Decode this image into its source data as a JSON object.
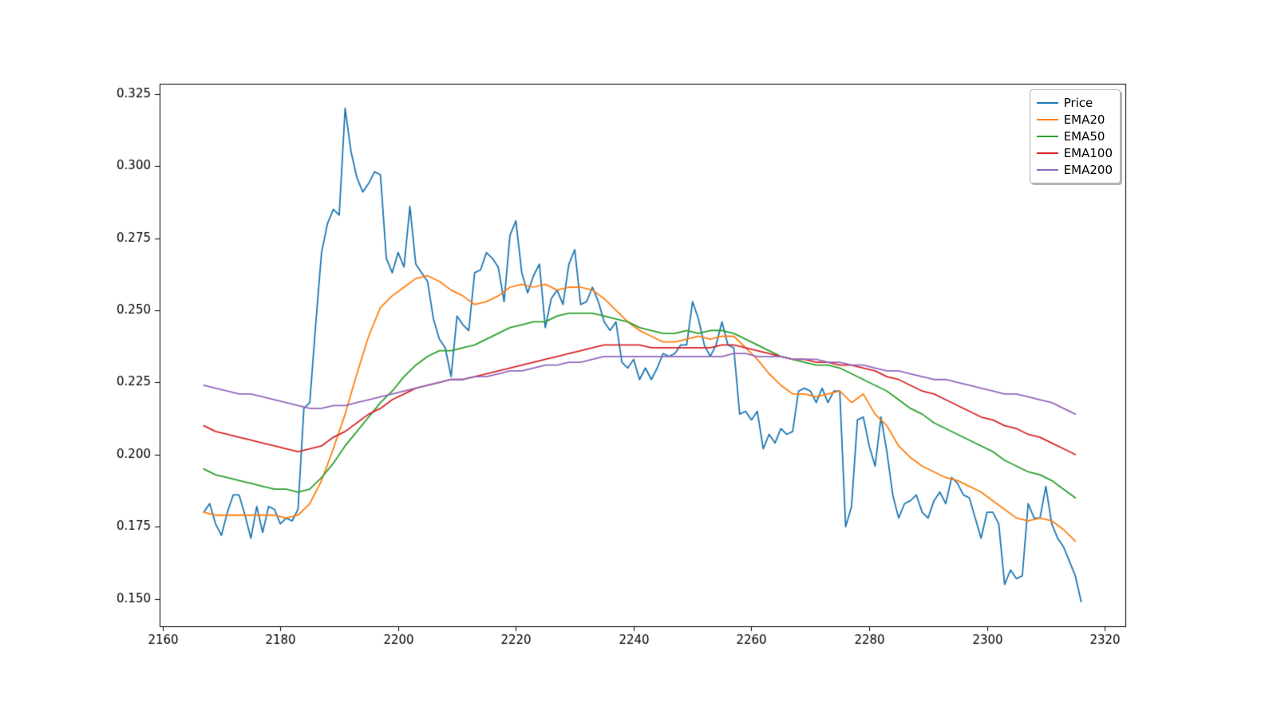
{
  "chart_data": {
    "type": "line",
    "title": "",
    "xlabel": "",
    "ylabel": "",
    "grid": false,
    "legend_position": "upper right",
    "xlim": [
      2159.5,
      2323.5
    ],
    "ylim": [
      0.1405,
      0.3285
    ],
    "x_ticks": [
      2160,
      2180,
      2200,
      2220,
      2240,
      2260,
      2280,
      2300,
      2320
    ],
    "x_tick_labels": [
      "2160",
      "2180",
      "2200",
      "2220",
      "2240",
      "2260",
      "2280",
      "2300",
      "2320"
    ],
    "y_ticks": [
      0.15,
      0.175,
      0.2,
      0.225,
      0.25,
      0.275,
      0.3,
      0.325
    ],
    "y_tick_labels": [
      "0.150",
      "0.175",
      "0.200",
      "0.225",
      "0.250",
      "0.275",
      "0.300",
      "0.325"
    ],
    "series": [
      {
        "name": "Price",
        "color": "#1f77b4",
        "x_start": 2167,
        "x_step": 1,
        "values": [
          0.18,
          0.183,
          0.176,
          0.172,
          0.18,
          0.186,
          0.186,
          0.179,
          0.171,
          0.182,
          0.173,
          0.182,
          0.181,
          0.176,
          0.178,
          0.177,
          0.181,
          0.216,
          0.218,
          0.245,
          0.27,
          0.28,
          0.285,
          0.283,
          0.32,
          0.305,
          0.296,
          0.291,
          0.294,
          0.298,
          0.297,
          0.268,
          0.263,
          0.27,
          0.265,
          0.286,
          0.266,
          0.263,
          0.26,
          0.247,
          0.24,
          0.237,
          0.227,
          0.248,
          0.245,
          0.243,
          0.263,
          0.264,
          0.27,
          0.268,
          0.265,
          0.253,
          0.276,
          0.281,
          0.263,
          0.256,
          0.262,
          0.266,
          0.244,
          0.254,
          0.257,
          0.252,
          0.266,
          0.271,
          0.252,
          0.253,
          0.258,
          0.253,
          0.246,
          0.243,
          0.246,
          0.232,
          0.23,
          0.233,
          0.226,
          0.23,
          0.226,
          0.23,
          0.235,
          0.234,
          0.235,
          0.238,
          0.238,
          0.253,
          0.247,
          0.238,
          0.234,
          0.238,
          0.246,
          0.238,
          0.237,
          0.214,
          0.215,
          0.212,
          0.215,
          0.202,
          0.207,
          0.204,
          0.209,
          0.207,
          0.208,
          0.222,
          0.223,
          0.222,
          0.218,
          0.223,
          0.218,
          0.222,
          0.222,
          0.175,
          0.182,
          0.212,
          0.213,
          0.203,
          0.196,
          0.213,
          0.201,
          0.186,
          0.178,
          0.183,
          0.184,
          0.186,
          0.18,
          0.178,
          0.184,
          0.187,
          0.183,
          0.192,
          0.19,
          0.186,
          0.185,
          0.178,
          0.171,
          0.18,
          0.18,
          0.176,
          0.155,
          0.16,
          0.157,
          0.158,
          0.183,
          0.178,
          0.178,
          0.189,
          0.176,
          0.171,
          0.168,
          0.163,
          0.158,
          0.149
        ]
      },
      {
        "name": "EMA20",
        "color": "#ff7f0e",
        "x_start": 2167,
        "x_step": 2,
        "values": [
          0.18,
          0.179,
          0.179,
          0.179,
          0.179,
          0.179,
          0.179,
          0.178,
          0.179,
          0.183,
          0.191,
          0.202,
          0.214,
          0.228,
          0.241,
          0.251,
          0.255,
          0.258,
          0.261,
          0.262,
          0.26,
          0.257,
          0.255,
          0.252,
          0.253,
          0.255,
          0.258,
          0.259,
          0.258,
          0.259,
          0.257,
          0.258,
          0.258,
          0.257,
          0.254,
          0.25,
          0.246,
          0.243,
          0.241,
          0.239,
          0.239,
          0.24,
          0.241,
          0.24,
          0.241,
          0.241,
          0.237,
          0.233,
          0.228,
          0.224,
          0.221,
          0.221,
          0.22,
          0.221,
          0.222,
          0.218,
          0.221,
          0.214,
          0.21,
          0.203,
          0.199,
          0.196,
          0.194,
          0.192,
          0.191,
          0.189,
          0.187,
          0.184,
          0.181,
          0.178,
          0.177,
          0.178,
          0.177,
          0.174,
          0.17
        ]
      },
      {
        "name": "EMA50",
        "color": "#2ca02c",
        "x_start": 2167,
        "x_step": 2,
        "values": [
          0.195,
          0.193,
          0.192,
          0.191,
          0.19,
          0.189,
          0.188,
          0.188,
          0.187,
          0.188,
          0.192,
          0.197,
          0.203,
          0.208,
          0.213,
          0.218,
          0.222,
          0.227,
          0.231,
          0.234,
          0.236,
          0.236,
          0.237,
          0.238,
          0.24,
          0.242,
          0.244,
          0.245,
          0.246,
          0.246,
          0.248,
          0.249,
          0.249,
          0.249,
          0.248,
          0.247,
          0.246,
          0.244,
          0.243,
          0.242,
          0.242,
          0.243,
          0.242,
          0.243,
          0.243,
          0.242,
          0.24,
          0.238,
          0.236,
          0.234,
          0.233,
          0.232,
          0.231,
          0.231,
          0.23,
          0.228,
          0.226,
          0.224,
          0.222,
          0.219,
          0.216,
          0.214,
          0.211,
          0.209,
          0.207,
          0.205,
          0.203,
          0.201,
          0.198,
          0.196,
          0.194,
          0.193,
          0.191,
          0.188,
          0.185
        ]
      },
      {
        "name": "EMA100",
        "color": "#d62728",
        "x_start": 2167,
        "x_step": 2,
        "values": [
          0.21,
          0.208,
          0.207,
          0.206,
          0.205,
          0.204,
          0.203,
          0.202,
          0.201,
          0.202,
          0.203,
          0.206,
          0.208,
          0.211,
          0.214,
          0.216,
          0.219,
          0.221,
          0.223,
          0.224,
          0.225,
          0.226,
          0.226,
          0.227,
          0.228,
          0.229,
          0.23,
          0.231,
          0.232,
          0.233,
          0.234,
          0.235,
          0.236,
          0.237,
          0.238,
          0.238,
          0.238,
          0.238,
          0.237,
          0.237,
          0.237,
          0.237,
          0.237,
          0.237,
          0.238,
          0.238,
          0.237,
          0.236,
          0.235,
          0.234,
          0.233,
          0.233,
          0.232,
          0.232,
          0.231,
          0.231,
          0.23,
          0.229,
          0.227,
          0.226,
          0.224,
          0.222,
          0.221,
          0.219,
          0.217,
          0.215,
          0.213,
          0.212,
          0.21,
          0.209,
          0.207,
          0.206,
          0.204,
          0.202,
          0.2
        ]
      },
      {
        "name": "EMA200",
        "color": "#9467bd",
        "x_start": 2167,
        "x_step": 2,
        "values": [
          0.224,
          0.223,
          0.222,
          0.221,
          0.221,
          0.22,
          0.219,
          0.218,
          0.217,
          0.216,
          0.216,
          0.217,
          0.217,
          0.218,
          0.219,
          0.22,
          0.221,
          0.222,
          0.223,
          0.224,
          0.225,
          0.226,
          0.226,
          0.227,
          0.227,
          0.228,
          0.229,
          0.229,
          0.23,
          0.231,
          0.231,
          0.232,
          0.232,
          0.233,
          0.234,
          0.234,
          0.234,
          0.234,
          0.234,
          0.234,
          0.234,
          0.234,
          0.234,
          0.234,
          0.234,
          0.235,
          0.235,
          0.234,
          0.234,
          0.234,
          0.233,
          0.233,
          0.233,
          0.232,
          0.232,
          0.231,
          0.231,
          0.23,
          0.229,
          0.229,
          0.228,
          0.227,
          0.226,
          0.226,
          0.225,
          0.224,
          0.223,
          0.222,
          0.221,
          0.221,
          0.22,
          0.219,
          0.218,
          0.216,
          0.214
        ]
      }
    ],
    "legend_entries": [
      "Price",
      "EMA20",
      "EMA50",
      "EMA100",
      "EMA200"
    ]
  },
  "style": {
    "axis_color": "#000000",
    "tick_label_color": "#000000",
    "background_color": "#ffffff"
  }
}
